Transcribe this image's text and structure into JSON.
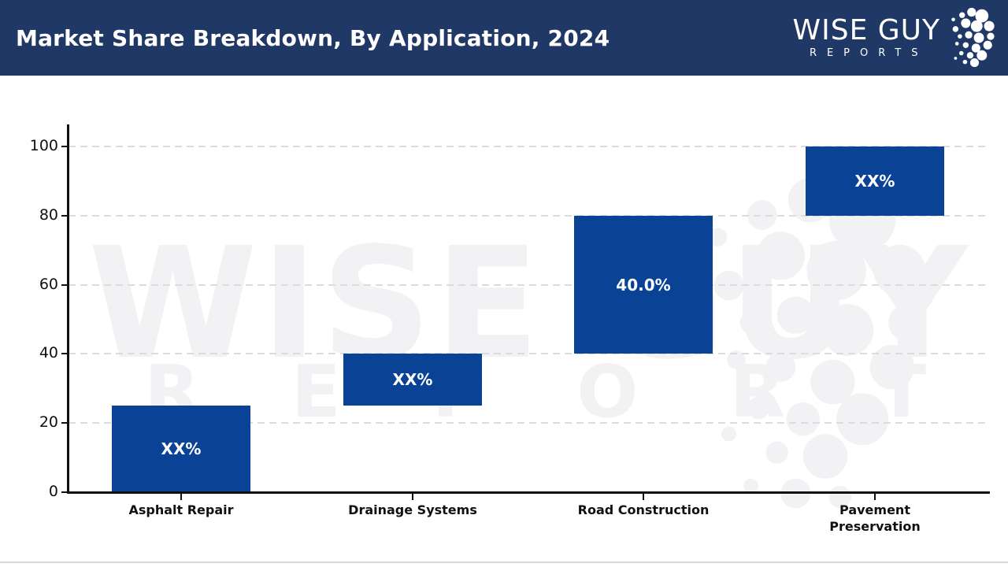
{
  "header": {
    "title": "Market Share Breakdown, By Application, 2024",
    "logo": {
      "line1": "WISE GUY",
      "line2": "REPORTS"
    }
  },
  "watermark": {
    "line1": "WISE GUY",
    "line2": "R E P O R T S"
  },
  "theme": {
    "header_bg": "#1f3865",
    "bar_color": "#0a4396",
    "grid_color": "#dcdcdc",
    "axis_color": "#111111",
    "text_color": "#111111",
    "bar_label_color": "#ffffff",
    "watermark_color": "#f2f2f4"
  },
  "chart_data": {
    "type": "bar",
    "subtype": "waterfall",
    "title": "Market Share Breakdown, By Application, 2024",
    "categories": [
      "Asphalt Repair",
      "Drainage Systems",
      "Road Construction",
      "Pavement\nPreservation"
    ],
    "segments": [
      {
        "category": "Asphalt Repair",
        "start": 0,
        "end": 25,
        "label": "XX%"
      },
      {
        "category": "Drainage Systems",
        "start": 25,
        "end": 40,
        "label": "XX%"
      },
      {
        "category": "Road Construction",
        "start": 40,
        "end": 80,
        "label": "40.0%"
      },
      {
        "category": "Pavement Preservation",
        "start": 80,
        "end": 100,
        "label": "XX%"
      }
    ],
    "xlabel": "",
    "ylabel": "",
    "ylim": [
      0,
      100
    ],
    "yticks": [
      0,
      20,
      40,
      60,
      80,
      100
    ],
    "grid": "horizontal-dashed",
    "legend": "none",
    "bar_color": "#0a4396",
    "bar_label_color": "#ffffff"
  }
}
